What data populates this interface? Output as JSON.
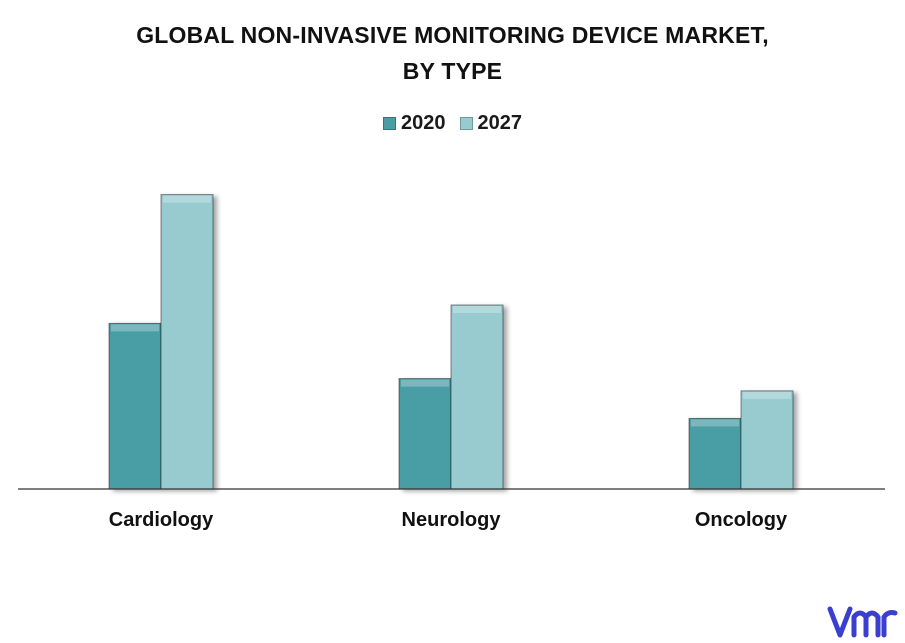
{
  "chart_data": {
    "type": "bar",
    "title": "GLOBAL NON-INVASIVE MONITORING DEVICE MARKET,",
    "title_line2": "BY TYPE",
    "categories": [
      "Cardiology",
      "Neurology",
      "Oncology"
    ],
    "series": [
      {
        "name": "2020",
        "values": [
          5.4,
          3.6,
          2.3
        ],
        "color": "#4a9da4"
      },
      {
        "name": "2027",
        "values": [
          9.6,
          6.0,
          3.2
        ],
        "color": "#98cbd0"
      }
    ],
    "ylim": [
      0,
      10.5
    ],
    "xlabel": "",
    "ylabel": "",
    "grid": false,
    "legend_position": "top-center"
  },
  "logo": {
    "alt": "vmr",
    "color": "#3b3fd0"
  }
}
